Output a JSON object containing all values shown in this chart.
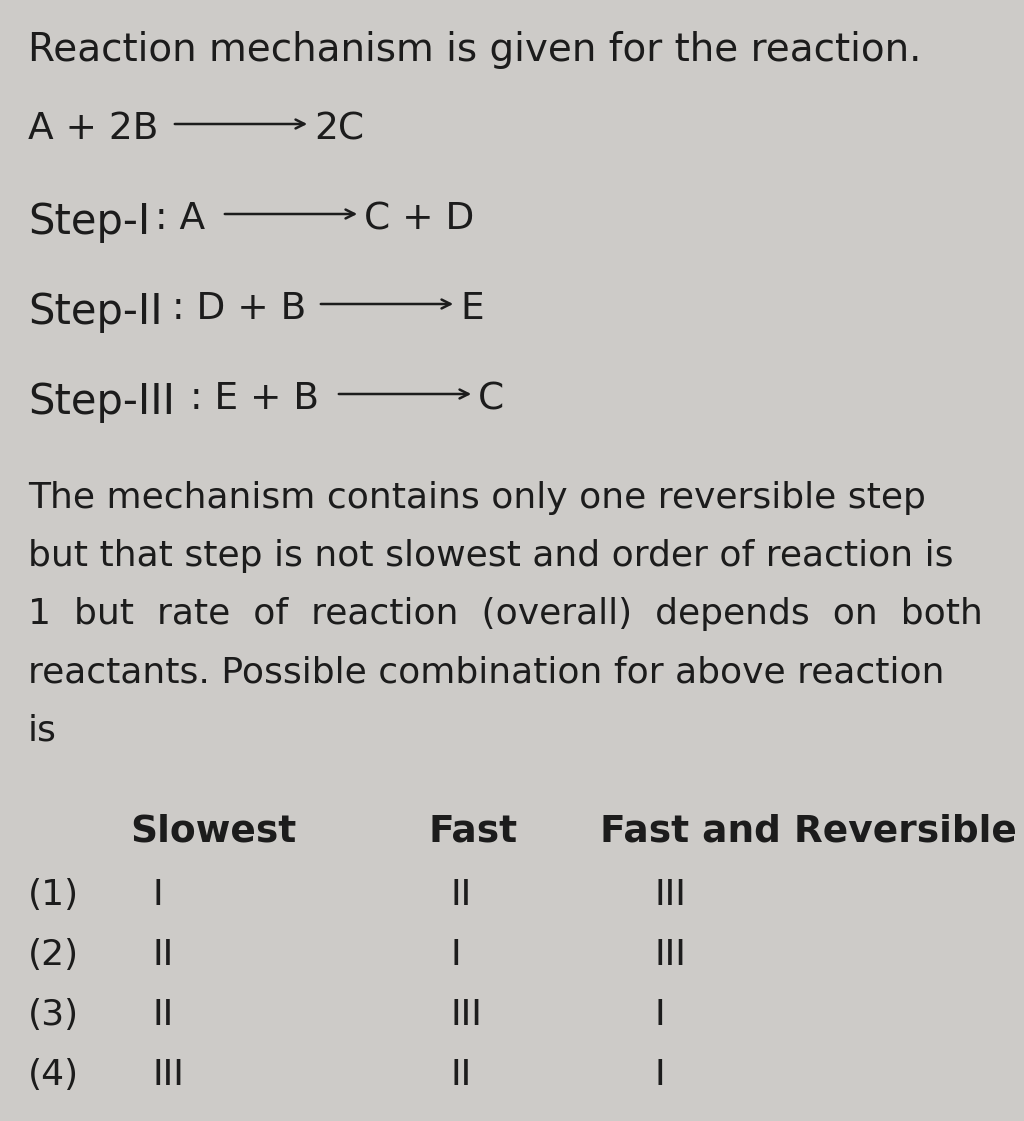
{
  "bg_color": "#cdcbc8",
  "text_color": "#1c1c1c",
  "title_line": "Reaction mechanism is given for the reaction.",
  "font_size_title": 28,
  "font_size_overall": 27,
  "font_size_step_label": 30,
  "font_size_step_eq": 27,
  "font_size_para": 26,
  "font_size_table_header": 27,
  "font_size_table_row": 26,
  "para_lines": [
    "The mechanism contains only one reversible step",
    "but that step is not slowest and order of reaction is",
    "1  but  rate  of  reaction  (overall)  depends  on  both",
    "reactants. Possible combination for above reaction",
    "is"
  ],
  "table_header": [
    "",
    "Slowest",
    "Fast",
    "Fast and Reversible"
  ],
  "table_rows": [
    [
      "(1)",
      "I",
      "II",
      "III"
    ],
    [
      "(2)",
      "II",
      "I",
      "III"
    ],
    [
      "(3)",
      "II",
      "III",
      "I"
    ],
    [
      "(4)",
      "III",
      "II",
      "I"
    ]
  ]
}
